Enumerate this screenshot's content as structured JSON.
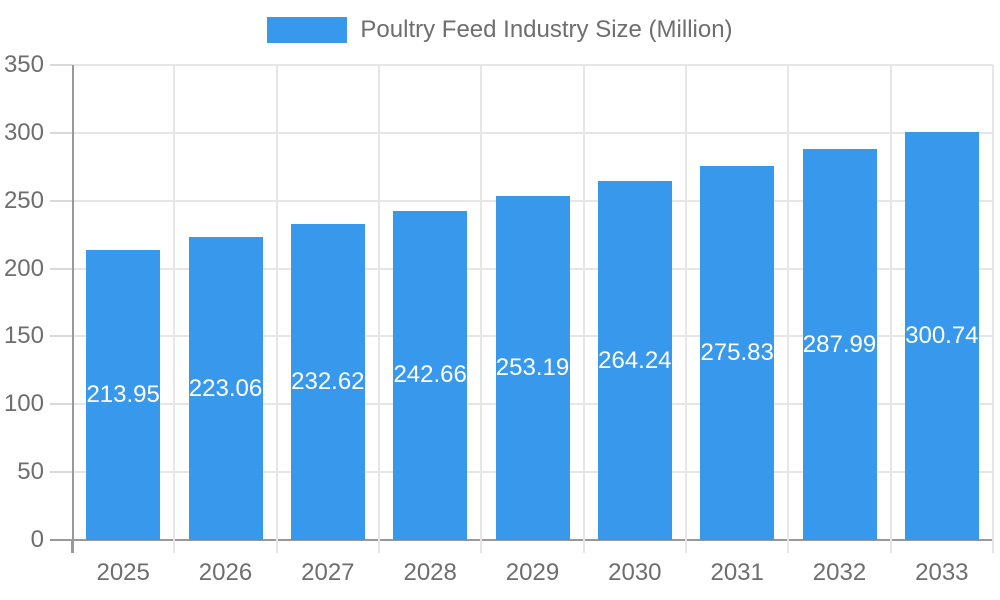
{
  "chart_data": {
    "type": "bar",
    "title": "",
    "legend": "Poultry Feed Industry Size (Million)",
    "legend_position": "top",
    "categories": [
      "2025",
      "2026",
      "2027",
      "2028",
      "2029",
      "2030",
      "2031",
      "2032",
      "2033"
    ],
    "series": [
      {
        "name": "Poultry Feed Industry Size (Million)",
        "values": [
          213.95,
          223.06,
          232.62,
          242.66,
          253.19,
          264.24,
          275.83,
          287.99,
          300.74
        ]
      }
    ],
    "value_label_decimals": 2,
    "xlabel": "",
    "ylabel": "",
    "ylim": [
      0,
      350
    ],
    "yticks": [
      0,
      50,
      100,
      150,
      200,
      250,
      300,
      350
    ],
    "grid": true,
    "colors": {
      "bar": "#3899ec",
      "bar_value_label": "#ffffff",
      "grid_line": "#e6e6e6",
      "axis_line": "#999999",
      "tick_text": "#6e6e6e",
      "background": "#ffffff"
    }
  }
}
